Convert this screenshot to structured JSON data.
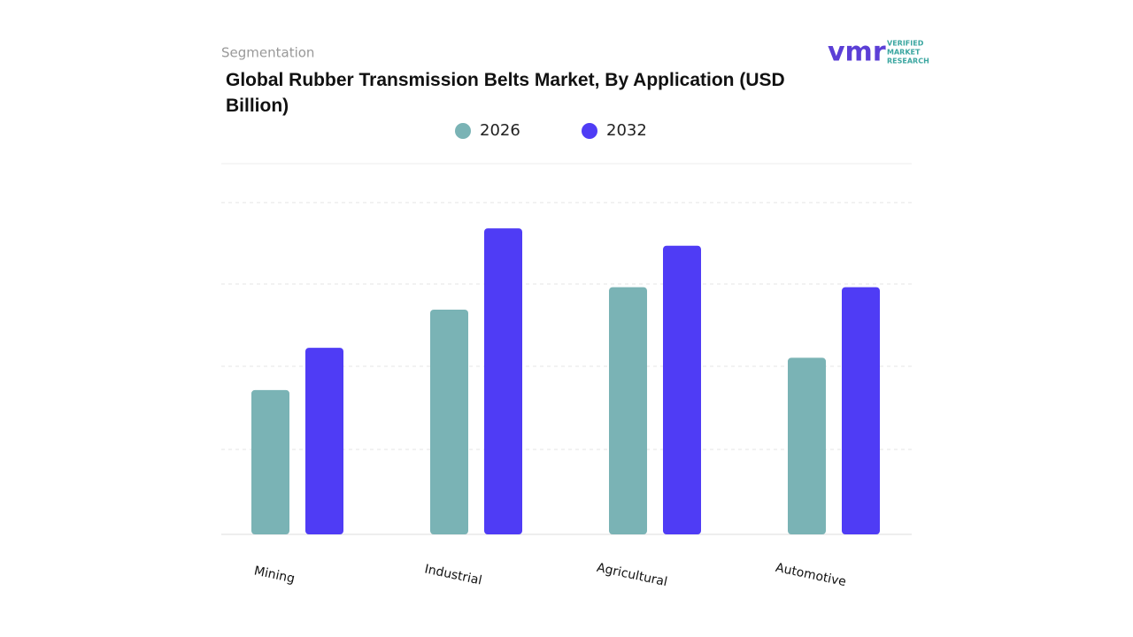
{
  "header": "Segmentation",
  "logo": {
    "mark": "vmr",
    "lines": [
      "VERIFIED",
      "MARKET",
      "RESEARCH"
    ]
  },
  "chart_data": {
    "type": "bar",
    "title": "Global Rubber Transmission Belts Market, By Application (USD Billion)",
    "categories": [
      "Mining",
      "Industrial",
      "Agricultural",
      "Automotive"
    ],
    "series": [
      {
        "name": "2026",
        "color": "#7ab3b5",
        "values": [
          1.74,
          2.71,
          2.98,
          2.13
        ]
      },
      {
        "name": "2032",
        "color": "#4f3cf5",
        "values": [
          2.25,
          3.69,
          3.48,
          2.98
        ]
      }
    ],
    "ylim": [
      0,
      4
    ]
  }
}
